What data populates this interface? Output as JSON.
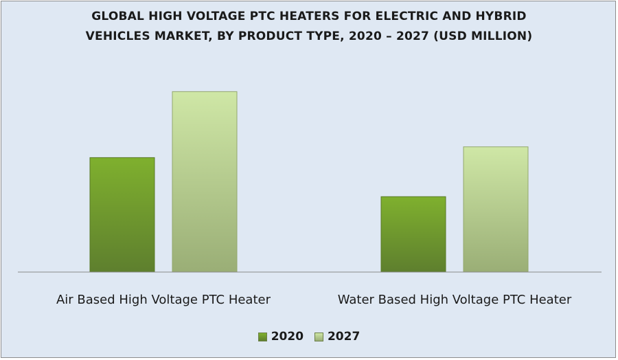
{
  "chart_data": {
    "type": "bar",
    "title_lines": [
      "GLOBAL HIGH VOLTAGE PTC HEATERS FOR ELECTRIC AND HYBRID",
      "VEHICLES MARKET, BY PRODUCT TYPE, 2020 – 2027 (USD MILLION)"
    ],
    "categories": [
      "Air Based High Voltage PTC Heater",
      "Water Based High Voltage PTC Heater"
    ],
    "series": [
      {
        "name": "2020",
        "values": [
          170,
          112
        ],
        "color": "#7fa83a"
      },
      {
        "name": "2027",
        "values": [
          268,
          186
        ],
        "color": "#b7d489"
      }
    ],
    "ylim": [
      0,
      300
    ],
    "grid": false,
    "legend_position": "bottom"
  }
}
